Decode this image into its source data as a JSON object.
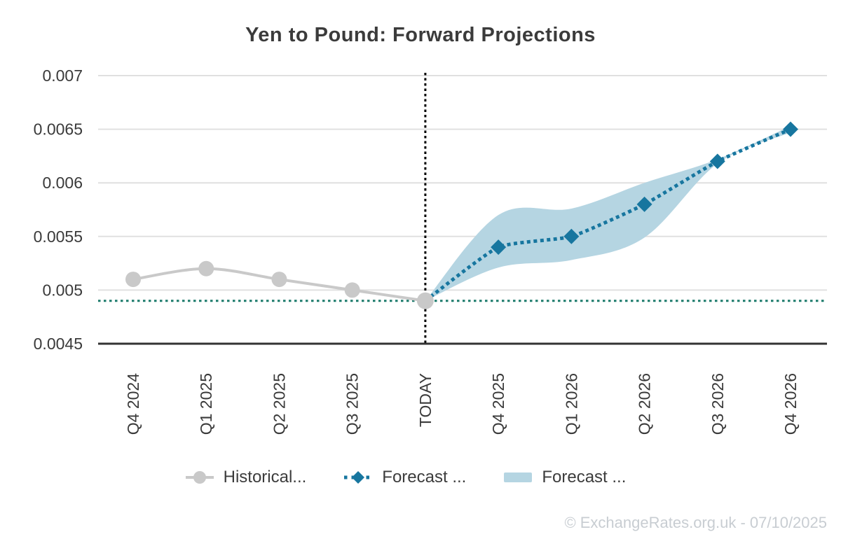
{
  "title": "Yen to Pound: Forward Projections",
  "footer": {
    "attribution": "© ExchangeRates.org.uk - 07/10/2025"
  },
  "colors": {
    "historical": "#c9c9c9",
    "forecast": "#17769f",
    "band": "#b5d5e2",
    "current_rate_line": "#1b7a6b",
    "today_line": "#000000",
    "grid": "#e0e0e0",
    "axis": "#333333",
    "tick_text": "#3a3a3a",
    "title_text": "#3b3b3b",
    "footer_text": "#c8cdd2"
  },
  "chart_data": {
    "type": "line",
    "title": "Yen to Pound: Forward Projections",
    "xlabel": "",
    "ylabel": "",
    "categories": [
      "Q4 2024",
      "Q1 2025",
      "Q2 2025",
      "Q3 2025",
      "TODAY",
      "Q4 2025",
      "Q1 2026",
      "Q2 2026",
      "Q3 2026",
      "Q4 2026"
    ],
    "ylim": [
      0.0045,
      0.007
    ],
    "y_ticks": [
      {
        "value": 0.007,
        "label": "0.007"
      },
      {
        "value": 0.0065,
        "label": "0.0065"
      },
      {
        "value": 0.006,
        "label": "0.006"
      },
      {
        "value": 0.0055,
        "label": "0.0055"
      },
      {
        "value": 0.005,
        "label": "0.005"
      },
      {
        "value": 0.0045,
        "label": "0.0045"
      }
    ],
    "grid": true,
    "legend_position": "bottom",
    "series": [
      {
        "name": "Historical...",
        "kind": "line",
        "marker": "circle",
        "style": "solid",
        "x_indices": [
          0,
          1,
          2,
          3,
          4
        ],
        "values": [
          0.0051,
          0.0052,
          0.0051,
          0.005,
          0.0049
        ]
      },
      {
        "name": "Forecast ...",
        "kind": "line",
        "marker": "diamond",
        "style": "dotted",
        "x_indices": [
          4,
          5,
          6,
          7,
          8,
          9
        ],
        "values": [
          0.0049,
          0.0054,
          0.0055,
          0.0058,
          0.0062,
          0.0065
        ]
      },
      {
        "name": "Forecast ...",
        "kind": "band",
        "x_indices": [
          4,
          5,
          6,
          7,
          8,
          9
        ],
        "upper": [
          0.0049,
          0.0057,
          0.00576,
          0.006,
          0.00622,
          0.00653
        ],
        "lower": [
          0.0049,
          0.00521,
          0.00528,
          0.00549,
          0.00618,
          0.00647
        ]
      }
    ],
    "annotations": {
      "today_vline": {
        "x_category": "TODAY",
        "style": "dotted"
      },
      "current_rate_hline": {
        "y": 0.0049,
        "style": "dotted"
      }
    }
  }
}
